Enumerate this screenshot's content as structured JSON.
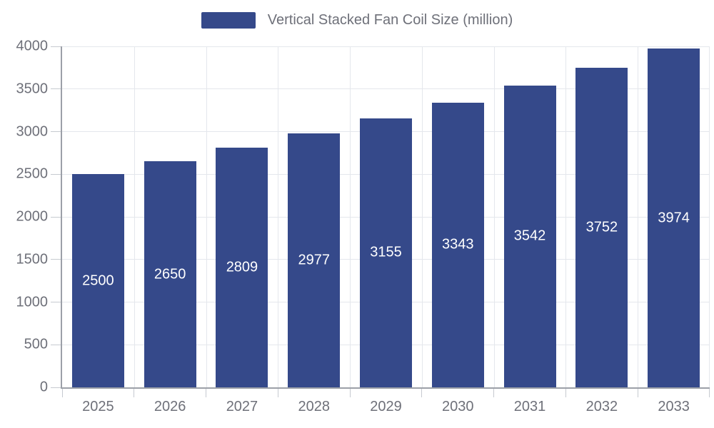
{
  "legend": {
    "label": "Vertical Stacked Fan Coil Size (million)"
  },
  "chart_data": {
    "type": "bar",
    "title": "Vertical Stacked Fan Coil Size (million)",
    "series_name": "Vertical Stacked Fan Coil Size (million)",
    "categories": [
      "2025",
      "2026",
      "2027",
      "2028",
      "2029",
      "2030",
      "2031",
      "2032",
      "2033"
    ],
    "values": [
      2500,
      2650,
      2809,
      2977,
      3155,
      3343,
      3542,
      3752,
      3974
    ],
    "xlabel": "",
    "ylabel": "",
    "ylim": [
      0,
      4000
    ],
    "ytick_step": 500,
    "yticks": [
      0,
      500,
      1000,
      1500,
      2000,
      2500,
      3000,
      3500,
      4000
    ],
    "grid": true,
    "legend_position": "top-center",
    "value_label_position": "inside-center",
    "colors": {
      "bar": "#35498A",
      "grid": "#E4E7EC",
      "axis_line": "#9CA0A8",
      "tick": "#C6CAD0",
      "text": "#6E7079",
      "value_label": "#FFFFFF",
      "background": "#FFFFFF"
    }
  }
}
